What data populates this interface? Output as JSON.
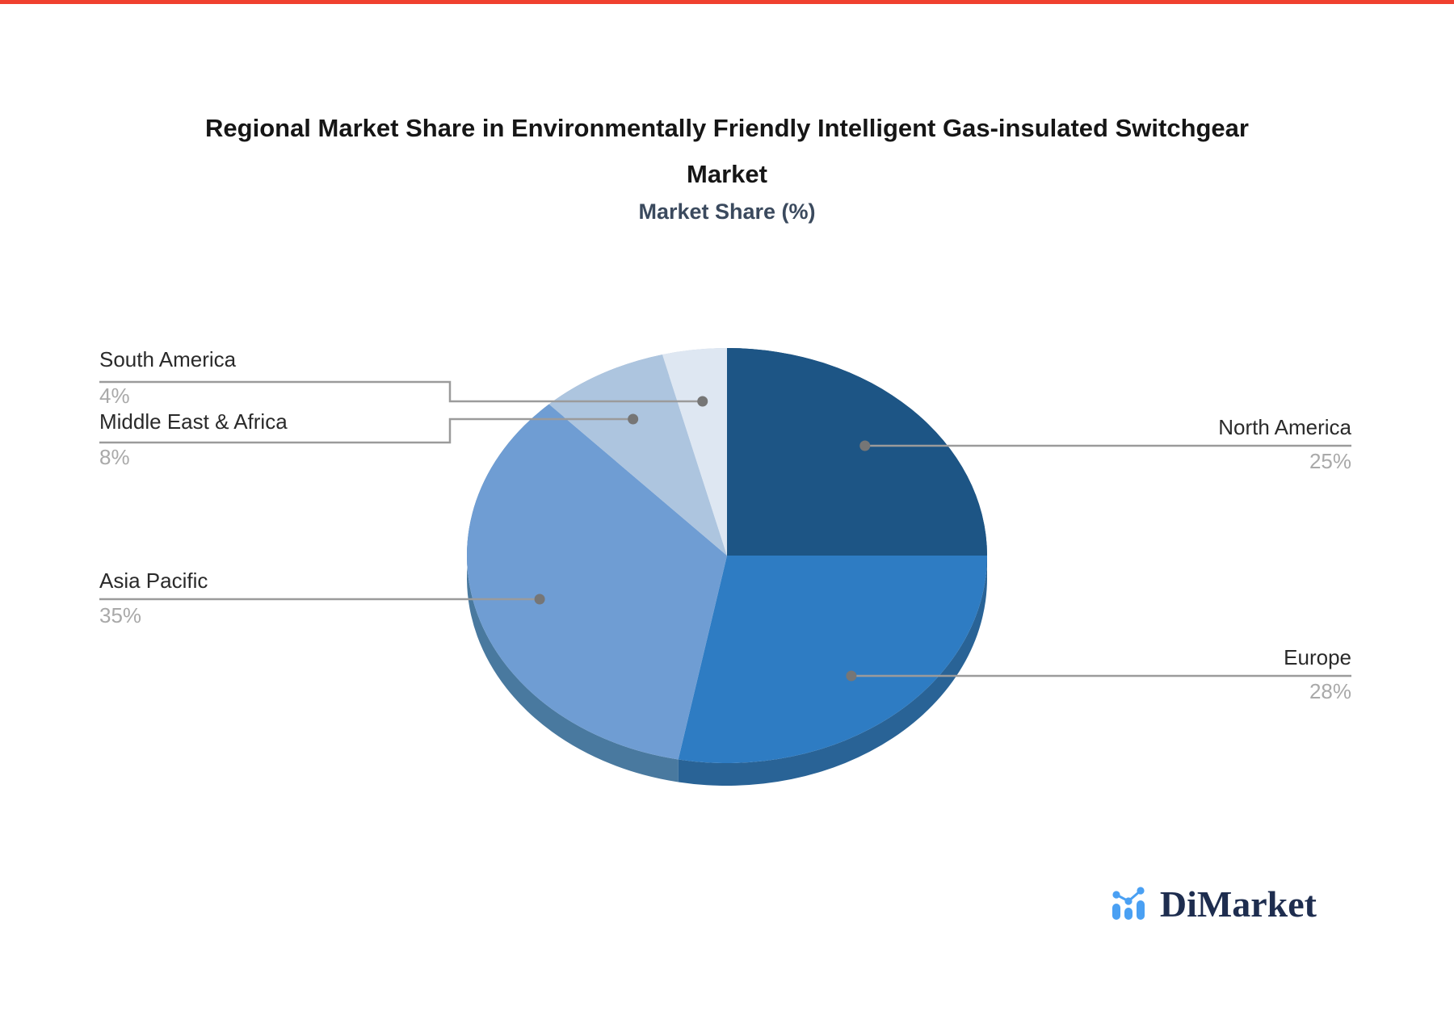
{
  "page": {
    "top_bar_color": "#f0402f",
    "background_color": "#ffffff"
  },
  "chart_data": {
    "type": "pie",
    "effect": "3d",
    "title": "Regional Market Share in Environmentally Friendly Intelligent Gas-insulated Switchgear Market",
    "title_lines": [
      "Regional Market Share in Environmentally Friendly Intelligent Gas-insulated Switchgear",
      "Market"
    ],
    "subtitle": "Market Share (%)",
    "unit": "%",
    "direction": "clockwise",
    "start_angle": "top",
    "legend": "none",
    "label_style": {
      "name_color": "#2a2a2a",
      "pct_color": "#a9a9a9",
      "connector_color": "#9b9b9b",
      "dot_color": "#767676"
    },
    "slices": [
      {
        "label": "North America",
        "value": 25,
        "pct_text": "25%",
        "color": "#1d5585",
        "side_color": "#17446b"
      },
      {
        "label": "Europe",
        "value": 28,
        "pct_text": "28%",
        "color": "#2e7cc3",
        "side_color": "#296396"
      },
      {
        "label": "Asia Pacific",
        "value": 35,
        "pct_text": "35%",
        "color": "#6f9dd3",
        "side_color": "#49799f"
      },
      {
        "label": "Middle East & Africa",
        "value": 8,
        "pct_text": "8%",
        "color": "#adc5df",
        "side_color": "#8fa9c6"
      },
      {
        "label": "South America",
        "value": 4,
        "pct_text": "4%",
        "color": "#dee7f2",
        "side_color": "#b9c7da"
      }
    ]
  },
  "logo": {
    "text": "DiMarket",
    "icon": "bar-line-chart-icon",
    "text_color": "#1e2d4f",
    "icon_color": "#4aa0f3"
  }
}
